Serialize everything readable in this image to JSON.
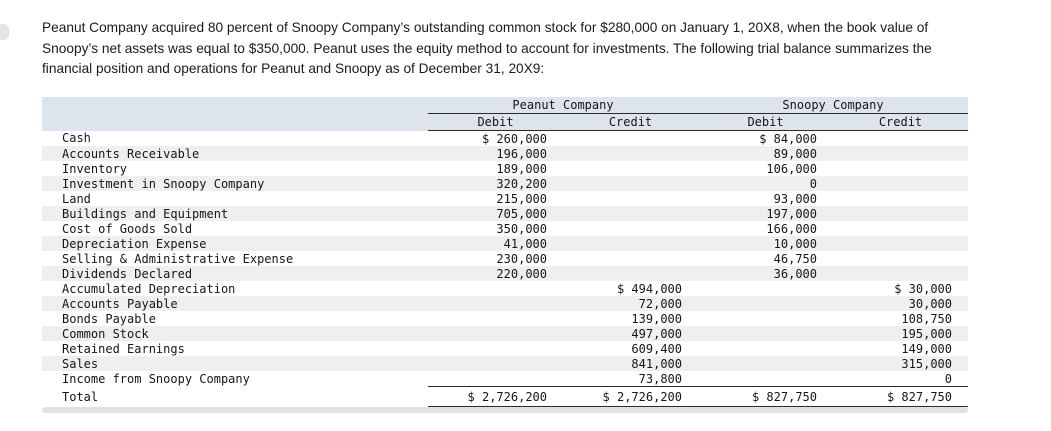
{
  "colors": {
    "header_bg": "#dde4ee",
    "stripe_bg": "#efefef",
    "rule": "#2b2b2b",
    "text": "#1c1c1c"
  },
  "intro": {
    "text": "Peanut Company acquired 80 percent of Snoopy Company’s outstanding common stock for $280,000 on January 1, 20X8, when the book value of Snoopy’s net assets was equal to $350,000. Peanut uses the equity method to account for investments. The following trial balance summarizes the financial position and operations for Peanut and Snoopy as of December 31, 20X9:"
  },
  "table": {
    "groups": [
      "Peanut Company",
      "Snoopy Company"
    ],
    "columns": [
      "Debit",
      "Credit",
      "Debit",
      "Credit"
    ],
    "rows": [
      {
        "account": "Cash",
        "values": [
          "$ 260,000",
          "",
          "$ 84,000",
          ""
        ]
      },
      {
        "account": "Accounts Receivable",
        "values": [
          "196,000",
          "",
          "89,000",
          ""
        ]
      },
      {
        "account": "Inventory",
        "values": [
          "189,000",
          "",
          "106,000",
          ""
        ]
      },
      {
        "account": "Investment in Snoopy Company",
        "values": [
          "320,200",
          "",
          "0",
          ""
        ]
      },
      {
        "account": "Land",
        "values": [
          "215,000",
          "",
          "93,000",
          ""
        ]
      },
      {
        "account": "Buildings and Equipment",
        "values": [
          "705,000",
          "",
          "197,000",
          ""
        ]
      },
      {
        "account": "Cost of Goods Sold",
        "values": [
          "350,000",
          "",
          "166,000",
          ""
        ]
      },
      {
        "account": "Depreciation Expense",
        "values": [
          "41,000",
          "",
          "10,000",
          ""
        ]
      },
      {
        "account": "Selling & Administrative Expense",
        "values": [
          "230,000",
          "",
          "46,750",
          ""
        ]
      },
      {
        "account": "Dividends Declared",
        "values": [
          "220,000",
          "",
          "36,000",
          ""
        ]
      },
      {
        "account": "Accumulated Depreciation",
        "values": [
          "",
          "$ 494,000",
          "",
          "$ 30,000"
        ]
      },
      {
        "account": "Accounts Payable",
        "values": [
          "",
          "72,000",
          "",
          "30,000"
        ]
      },
      {
        "account": "Bonds Payable",
        "values": [
          "",
          "139,000",
          "",
          "108,750"
        ]
      },
      {
        "account": "Common Stock",
        "values": [
          "",
          "497,000",
          "",
          "195,000"
        ]
      },
      {
        "account": "Retained Earnings",
        "values": [
          "",
          "609,400",
          "",
          "149,000"
        ]
      },
      {
        "account": "Sales",
        "values": [
          "",
          "841,000",
          "",
          "315,000"
        ]
      },
      {
        "account": "Income from Snoopy Company",
        "values": [
          "",
          "73,800",
          "",
          "0"
        ]
      }
    ],
    "total": {
      "account": "Total",
      "values": [
        "$ 2,726,200",
        "$ 2,726,200",
        "$ 827,750",
        "$ 827,750"
      ]
    }
  }
}
